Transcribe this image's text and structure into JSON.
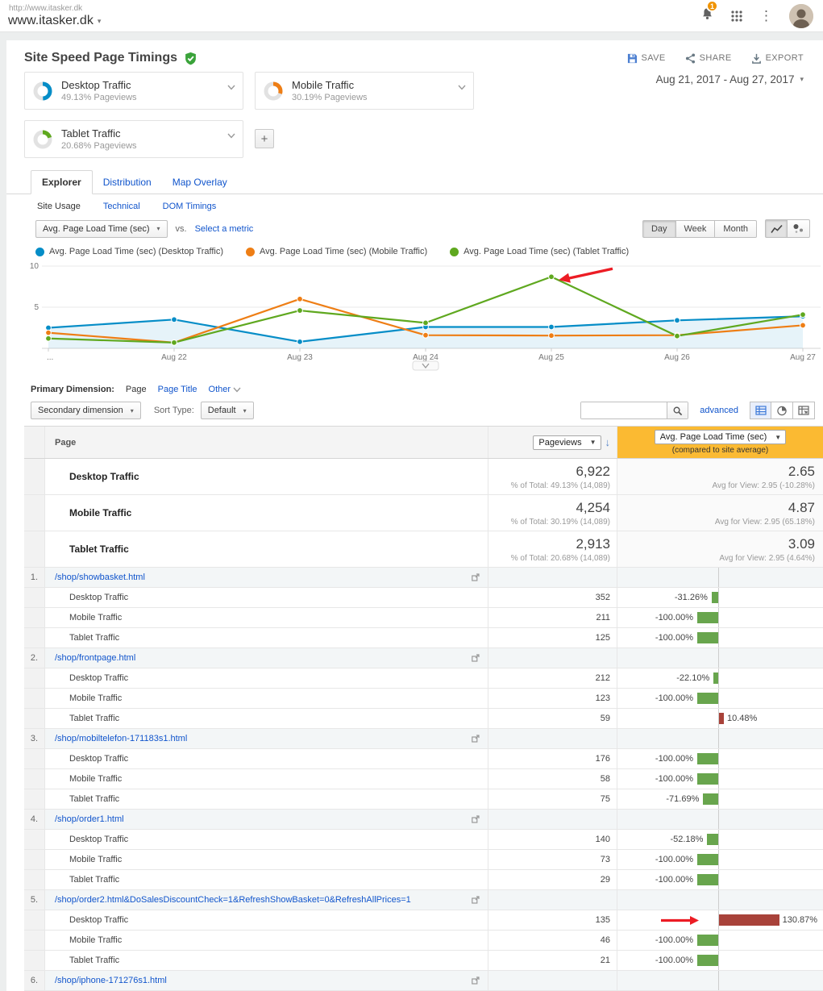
{
  "colors": {
    "desktop": "#058dc7",
    "mobile": "#ee7e15",
    "tablet": "#5fa81f",
    "bar_negative": "#68a54d",
    "bar_positive": "#a8423a",
    "metric_header_bg": "#fbba32",
    "annotation_arrow": "#ec1c24",
    "link": "#1155cc"
  },
  "topbar": {
    "url": "http://www.itasker.dk",
    "account": "www.itasker.dk",
    "notification_count": "1"
  },
  "report": {
    "title": "Site Speed Page Timings",
    "save_label": "SAVE",
    "share_label": "SHARE",
    "export_label": "EXPORT",
    "date_range": "Aug 21, 2017 - Aug 27, 2017"
  },
  "segments": {
    "add_label": "+",
    "cards": [
      {
        "name": "Desktop Traffic",
        "detail": "49.13% Pageviews",
        "pct": 49.13,
        "color_key": "desktop"
      },
      {
        "name": "Mobile Traffic",
        "detail": "30.19% Pageviews",
        "pct": 30.19,
        "color_key": "mobile"
      },
      {
        "name": "Tablet Traffic",
        "detail": "20.68% Pageviews",
        "pct": 20.68,
        "color_key": "tablet"
      }
    ]
  },
  "tabs": [
    {
      "label": "Explorer",
      "active": true
    },
    {
      "label": "Distribution",
      "active": false
    },
    {
      "label": "Map Overlay",
      "active": false
    }
  ],
  "subtabs": [
    {
      "label": "Site Usage",
      "active": true
    },
    {
      "label": "Technical",
      "active": false
    },
    {
      "label": "DOM Timings",
      "active": false
    }
  ],
  "explorer_controls": {
    "metric_dropdown": "Avg. Page Load Time (sec)",
    "vs_label": "vs.",
    "select_metric_label": "Select a metric",
    "granularity": [
      {
        "label": "Day",
        "active": true
      },
      {
        "label": "Week",
        "active": false
      },
      {
        "label": "Month",
        "active": false
      }
    ]
  },
  "chart_data": {
    "type": "line",
    "x_labels": [
      "...",
      "Aug 22",
      "Aug 23",
      "Aug 24",
      "Aug 25",
      "Aug 26",
      "Aug 27"
    ],
    "ylim": [
      0,
      10
    ],
    "yticks": [
      5,
      10
    ],
    "grid": true,
    "ylabel": "Avg. Page Load Time (sec)",
    "series": [
      {
        "name": "Avg. Page Load Time (sec) (Desktop Traffic)",
        "color_key": "desktop",
        "area": true,
        "values": [
          2.5,
          3.5,
          0.8,
          2.6,
          2.6,
          3.4,
          3.9
        ]
      },
      {
        "name": "Avg. Page Load Time (sec) (Mobile Traffic)",
        "color_key": "mobile",
        "area": false,
        "values": [
          1.9,
          0.7,
          6.0,
          1.6,
          1.55,
          1.6,
          2.8
        ]
      },
      {
        "name": "Avg. Page Load Time (sec) (Tablet Traffic)",
        "color_key": "tablet",
        "area": false,
        "values": [
          1.2,
          0.7,
          4.6,
          3.1,
          8.7,
          1.5,
          4.1
        ]
      }
    ],
    "annotation": {
      "type": "arrow",
      "series_index": 2,
      "point_index": 4,
      "note": "red arrow pointing at Tablet Traffic peak on Aug 25"
    }
  },
  "dimension_bar": {
    "label": "Primary Dimension:",
    "options": [
      {
        "label": "Page",
        "active": true,
        "caret": false
      },
      {
        "label": "Page Title",
        "active": false,
        "caret": false
      },
      {
        "label": "Other",
        "active": false,
        "caret": true
      }
    ]
  },
  "table_toolbar": {
    "secondary_dimension_label": "Secondary dimension",
    "sort_type_label": "Sort Type:",
    "sort_type_value": "Default",
    "search_value": "",
    "advanced_label": "advanced"
  },
  "table": {
    "header": {
      "page": "Page",
      "pageviews": "Pageviews",
      "metric": "Avg. Page Load Time (sec)",
      "metric_note": "(compared to site average)"
    },
    "summary_rows": [
      {
        "label": "Desktop Traffic",
        "pageviews": "6,922",
        "pageviews_sub": "% of Total: 49.13% (14,089)",
        "metric": "2.65",
        "metric_sub": "Avg for View: 2.95 (-10.28%)"
      },
      {
        "label": "Mobile Traffic",
        "pageviews": "4,254",
        "pageviews_sub": "% of Total: 30.19% (14,089)",
        "metric": "4.87",
        "metric_sub": "Avg for View: 2.95 (65.18%)"
      },
      {
        "label": "Tablet Traffic",
        "pageviews": "2,913",
        "pageviews_sub": "% of Total: 20.68% (14,089)",
        "metric": "3.09",
        "metric_sub": "Avg for View: 2.95 (4.64%)"
      }
    ],
    "rows": [
      {
        "num": "1.",
        "page": "/shop/showbasket.html",
        "segments": [
          {
            "label": "Desktop Traffic",
            "pageviews": "352",
            "pct": -31.26,
            "pct_label": "-31.26%"
          },
          {
            "label": "Mobile Traffic",
            "pageviews": "211",
            "pct": -100,
            "pct_label": "-100.00%"
          },
          {
            "label": "Tablet Traffic",
            "pageviews": "125",
            "pct": -100,
            "pct_label": "-100.00%"
          }
        ]
      },
      {
        "num": "2.",
        "page": "/shop/frontpage.html",
        "segments": [
          {
            "label": "Desktop Traffic",
            "pageviews": "212",
            "pct": -22.1,
            "pct_label": "-22.10%"
          },
          {
            "label": "Mobile Traffic",
            "pageviews": "123",
            "pct": -100,
            "pct_label": "-100.00%"
          },
          {
            "label": "Tablet Traffic",
            "pageviews": "59",
            "pct": 10.48,
            "pct_label": "10.48%"
          }
        ]
      },
      {
        "num": "3.",
        "page": "/shop/mobiltelefon-171183s1.html",
        "segments": [
          {
            "label": "Desktop Traffic",
            "pageviews": "176",
            "pct": -100,
            "pct_label": "-100.00%"
          },
          {
            "label": "Mobile Traffic",
            "pageviews": "58",
            "pct": -100,
            "pct_label": "-100.00%"
          },
          {
            "label": "Tablet Traffic",
            "pageviews": "75",
            "pct": -71.69,
            "pct_label": "-71.69%"
          }
        ]
      },
      {
        "num": "4.",
        "page": "/shop/order1.html",
        "segments": [
          {
            "label": "Desktop Traffic",
            "pageviews": "140",
            "pct": -52.18,
            "pct_label": "-52.18%"
          },
          {
            "label": "Mobile Traffic",
            "pageviews": "73",
            "pct": -100,
            "pct_label": "-100.00%"
          },
          {
            "label": "Tablet Traffic",
            "pageviews": "29",
            "pct": -100,
            "pct_label": "-100.00%"
          }
        ]
      },
      {
        "num": "5.",
        "page": "/shop/order2.html&DoSalesDiscountCheck=1&RefreshShowBasket=0&RefreshAllPrices=1",
        "segments": [
          {
            "label": "Desktop Traffic",
            "pageviews": "135",
            "pct": 130.87,
            "pct_label": "130.87%",
            "callout": true
          },
          {
            "label": "Mobile Traffic",
            "pageviews": "46",
            "pct": -100,
            "pct_label": "-100.00%"
          },
          {
            "label": "Tablet Traffic",
            "pageviews": "21",
            "pct": -100,
            "pct_label": "-100.00%"
          }
        ]
      },
      {
        "num": "6.",
        "page": "/shop/iphone-171276s1.html",
        "segments": []
      }
    ]
  }
}
